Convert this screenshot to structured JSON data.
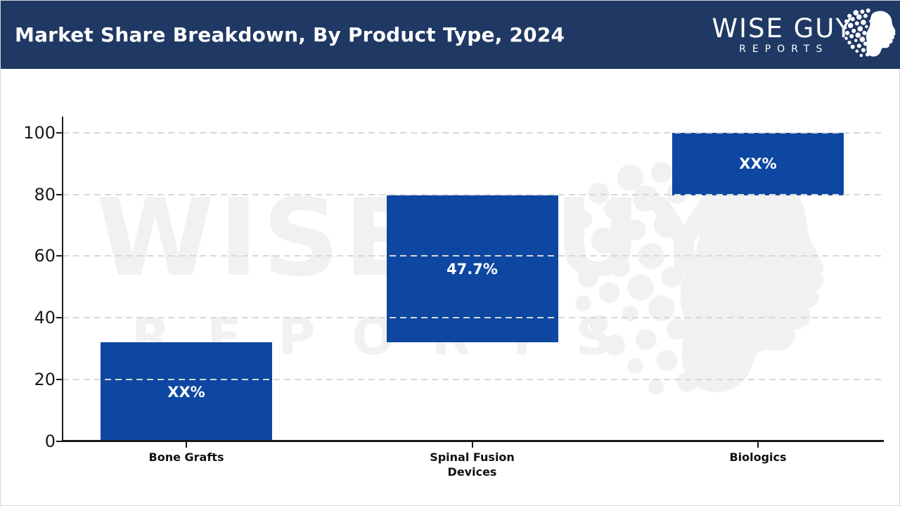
{
  "header": {
    "title": "Market Share Breakdown, By Product Type, 2024",
    "logo": {
      "line1": "WISE GUY",
      "line2": "REPORTS"
    }
  },
  "watermark": {
    "line1": "WISE GUY",
    "line2": "REPORTS"
  },
  "chart_data": {
    "type": "bar",
    "subtype": "stacked_percentage_waterfall",
    "title": "Market Share Breakdown, By Product Type, 2024",
    "categories": [
      "Bone Grafts",
      "Spinal Fusion\nDevices",
      "Biologics"
    ],
    "segments": [
      {
        "category": "Bone Grafts",
        "label": "XX%",
        "start": 0,
        "end": 32,
        "value_estimate": 32
      },
      {
        "category": "Spinal Fusion Devices",
        "label": "47.7%",
        "start": 32,
        "end": 79.7,
        "value_estimate": 47.7
      },
      {
        "category": "Biologics",
        "label": "XX%",
        "start": 79.7,
        "end": 100,
        "value_estimate": 20.3
      }
    ],
    "ylabel": "",
    "xlabel": "",
    "ylim": [
      0,
      105
    ],
    "yticks": [
      0,
      20,
      40,
      60,
      80,
      100
    ],
    "grid": "horizontal-dashed",
    "legend": "none"
  },
  "colors": {
    "header_bg": "#1f3864",
    "bar_color": "#0d47a1",
    "grid_color": "#d8d8d8",
    "axis_color": "#1a1a1a",
    "watermark_color": "#f1f1f3",
    "label_on_bar": "#ffffff"
  }
}
